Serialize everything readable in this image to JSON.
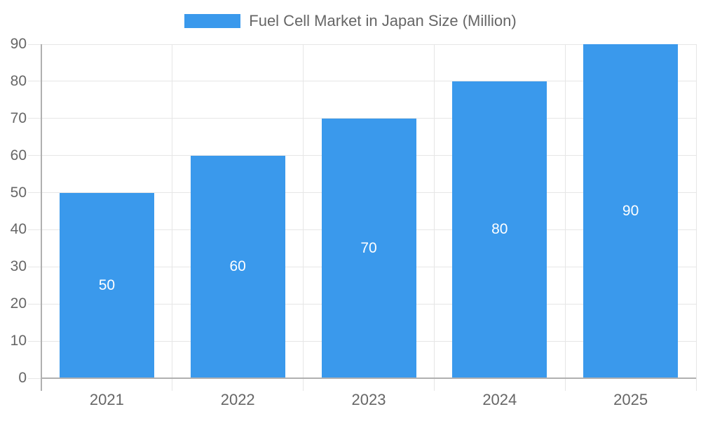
{
  "chart_data": {
    "type": "bar",
    "title": "Fuel Cell Market in Japan Size (Million)",
    "categories": [
      "2021",
      "2022",
      "2023",
      "2024",
      "2025"
    ],
    "values": [
      50,
      60,
      70,
      80,
      90
    ],
    "value_labels": [
      "50",
      "60",
      "70",
      "80",
      "90"
    ],
    "ytick_labels": [
      "0",
      "10",
      "20",
      "30",
      "40",
      "50",
      "60",
      "70",
      "80",
      "90"
    ],
    "xlabel": "",
    "ylabel": "",
    "ylim": [
      0,
      90
    ],
    "ytick_step": 10,
    "grid": true,
    "legend_position": "top",
    "value_labels_position": "inside-center",
    "colors": {
      "bar": "#3a99ec",
      "grid": "#e6e6e6",
      "axis": "#b0b0b0",
      "tick_text": "#666666",
      "title_text": "#666666",
      "value_text": "#ffffff",
      "background": "#ffffff"
    }
  }
}
